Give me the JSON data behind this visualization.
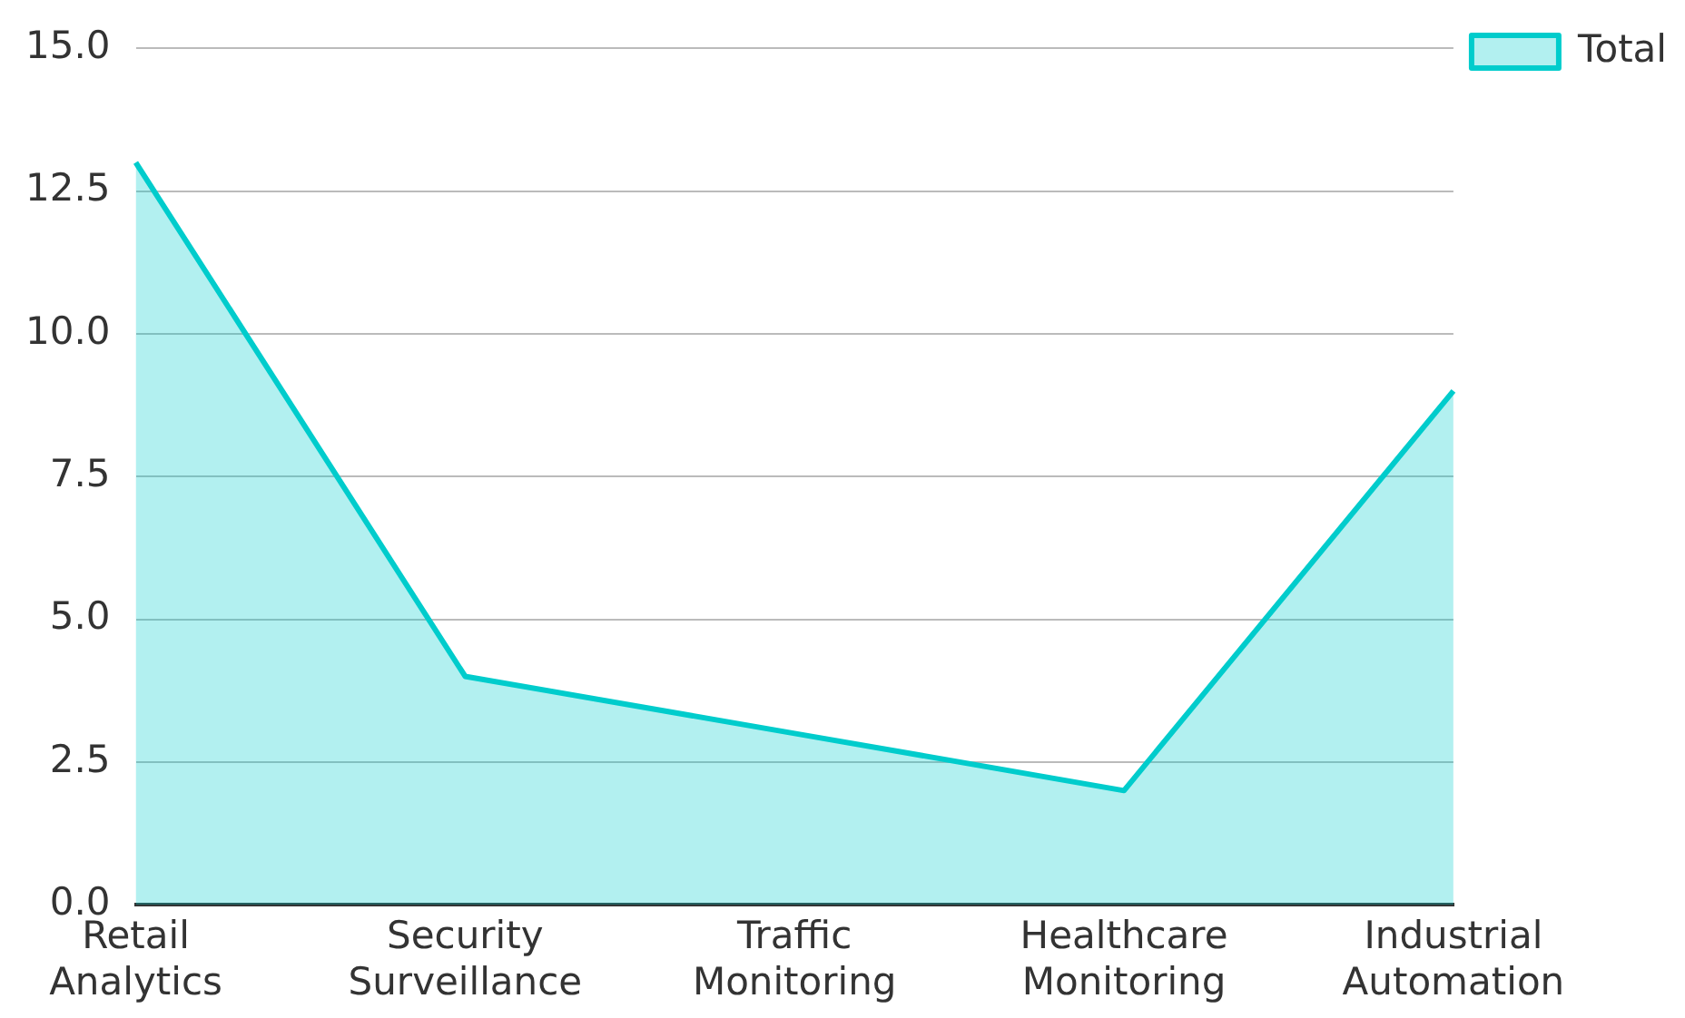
{
  "chart_data": {
    "type": "area",
    "categories": [
      "Retail Analytics",
      "Security Surveillance",
      "Traffic Monitoring",
      "Healthcare Monitoring",
      "Industrial Automation"
    ],
    "series": [
      {
        "name": "Total",
        "color": "#00cccc",
        "values": [
          13,
          4,
          3,
          2,
          9
        ]
      }
    ],
    "ylim": [
      0,
      15
    ],
    "yticks": [
      {
        "value": 0,
        "label": "0.0"
      },
      2.5,
      {
        "value": 5,
        "label": "5.0"
      },
      7.5,
      {
        "value": 10,
        "label": "10.0"
      },
      12.5,
      {
        "value": 15,
        "label": "15.0"
      }
    ],
    "grid": "y",
    "legend": "top right"
  }
}
